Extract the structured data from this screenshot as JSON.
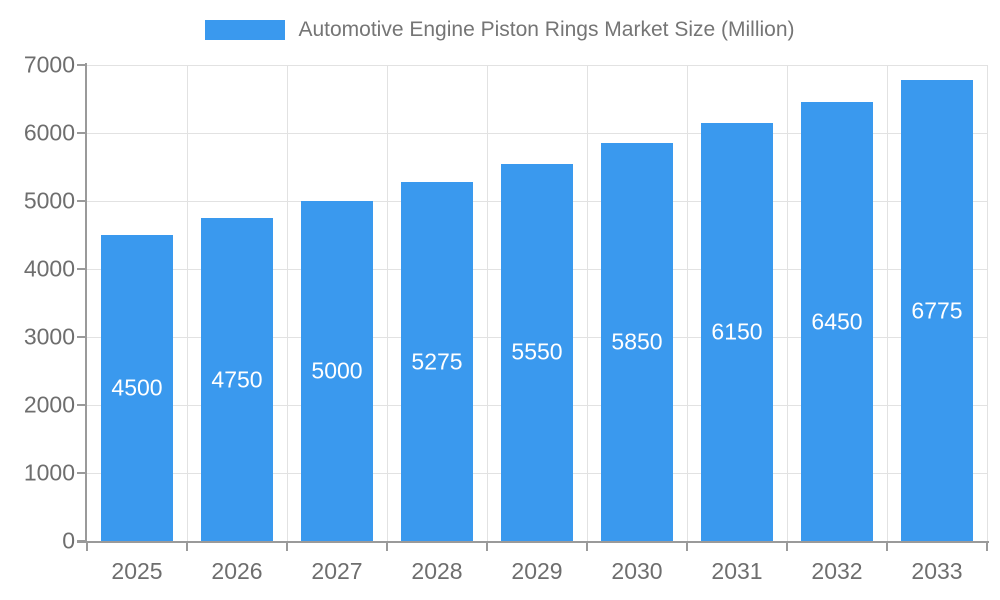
{
  "chart_data": {
    "type": "bar",
    "title": "Automotive Engine Piston Rings Market Size (Million)",
    "categories": [
      "2025",
      "2026",
      "2027",
      "2028",
      "2029",
      "2030",
      "2031",
      "2032",
      "2033"
    ],
    "values": [
      4500,
      4750,
      5000,
      5275,
      5550,
      5850,
      6150,
      6450,
      6775
    ],
    "value_labels": [
      "4500",
      "4750",
      "5000",
      "5275",
      "5550",
      "5850",
      "6150",
      "6450",
      "6775"
    ],
    "xlabel": "",
    "ylabel": "",
    "ylim": [
      0,
      7000
    ],
    "ytick_step": 1000,
    "yticks": [
      0,
      1000,
      2000,
      3000,
      4000,
      5000,
      6000,
      7000
    ],
    "ytick_labels": [
      "0",
      "1000",
      "2000",
      "3000",
      "4000",
      "5000",
      "6000",
      "7000"
    ],
    "grid": "horizontal and vertical",
    "legend_position": "top-center",
    "value_labels_position": "inside-center"
  },
  "colors": {
    "bar": "#3A99EE",
    "bar_value_label": "#FFFFFF",
    "axis_line": "#9A9A9A",
    "gridline": "#E2E2E2",
    "axis_text": "#6E6E6E",
    "legend_text": "#757575"
  }
}
